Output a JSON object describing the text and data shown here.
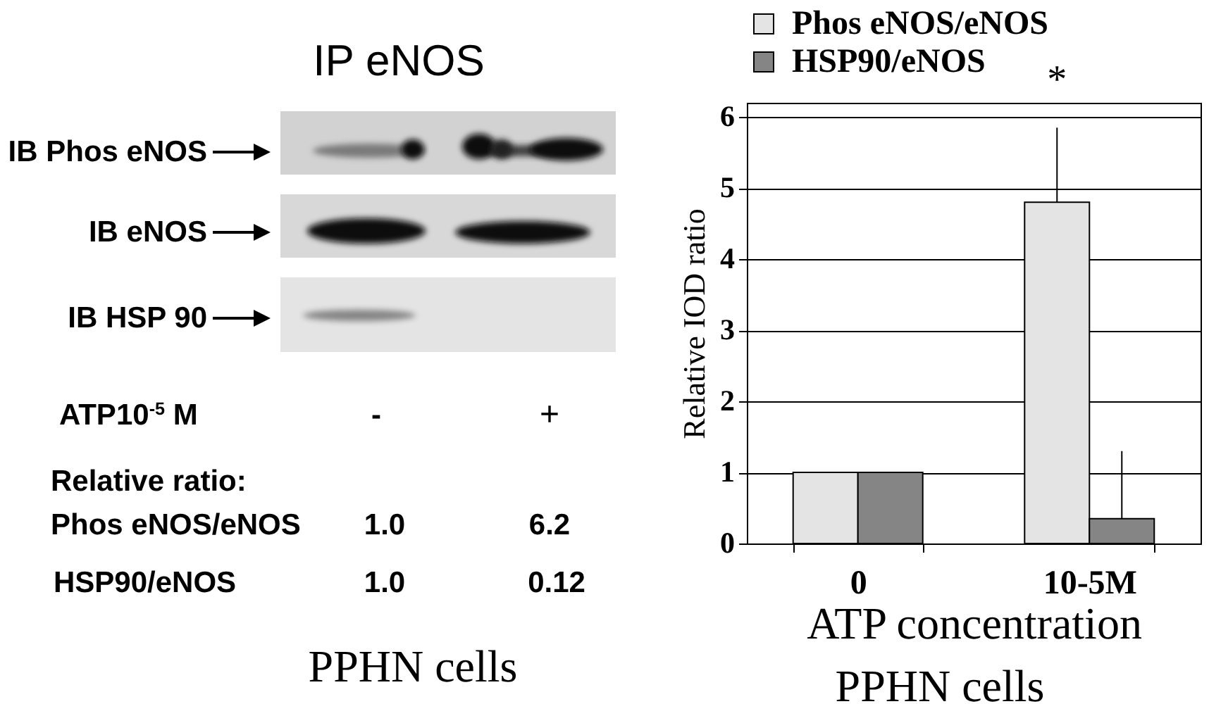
{
  "chart_data": [
    {
      "type": "other",
      "title": "IP eNOS",
      "annotations": [
        "IB Phos eNOS",
        "IB eNOS",
        "IB HSP 90",
        "ATP10$^{-5}$ M",
        "-",
        "+",
        "Relative ratio:",
        "Phos eNOS/eNOS",
        "1.0",
        "6.2",
        "HSP90/eNOS",
        "1.0",
        "0.12",
        "PPHN cells"
      ]
    },
    {
      "type": "bar",
      "categories": [
        "0",
        "10-5M"
      ],
      "series": [
        {
          "name": "Phos eNOS/eNOS",
          "color": "#e4e4e4",
          "values": [
            1.0,
            4.8
          ],
          "errors": [
            null,
            [
              4.8,
              5.85
            ]
          ]
        },
        {
          "name": "HSP90/eNOS",
          "color": "#858585",
          "values": [
            1.0,
            0.35
          ],
          "errors": [
            null,
            [
              0.35,
              1.3
            ]
          ]
        }
      ],
      "ylim": [
        0,
        6.2
      ],
      "yticks": [
        0,
        1,
        2,
        3,
        4,
        5,
        6
      ],
      "ylabel": "Relative IOD ratio",
      "xlabel": "ATP concentration",
      "legend": "top left",
      "grid": "y",
      "annotations": [
        {
          "text": "*",
          "x": "10-5M",
          "y": 4.8
        },
        "PPHN cells"
      ]
    }
  ]
}
